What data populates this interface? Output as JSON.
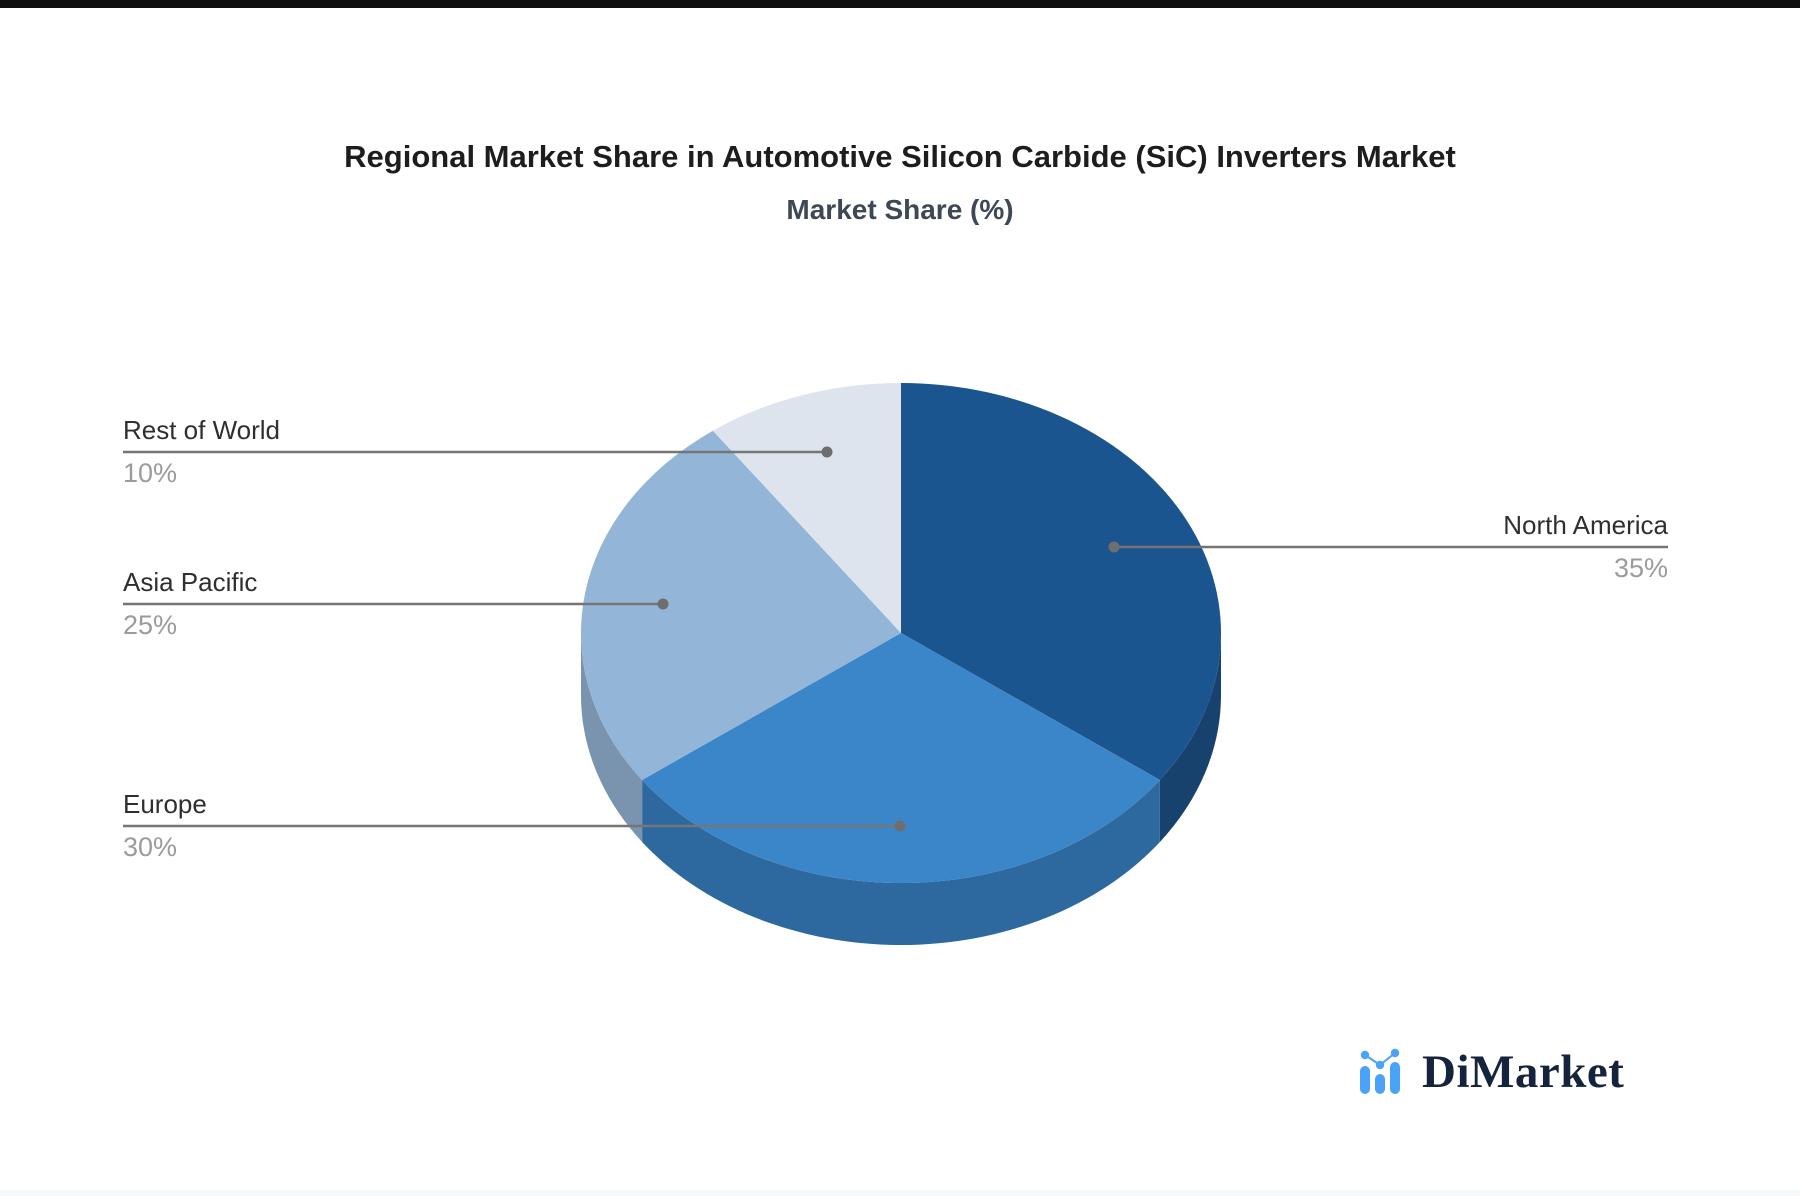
{
  "page": {
    "title": "Regional Market Share in Automotive Silicon Carbide (SiC) Inverters Market",
    "subtitle": "Market Share (%)"
  },
  "chart_data": {
    "type": "pie",
    "style": "3d",
    "title": "Regional Market Share in Automotive Silicon Carbide (SiC) Inverters Market",
    "subtitle": "Market Share (%)",
    "unit": "%",
    "start_angle": "12 o'clock",
    "direction": "clockwise",
    "legend_position": "none",
    "label_style": "callouts with leader lines and dots",
    "leader_line_color": "#757575",
    "slices": [
      {
        "label": "North America",
        "value": 35,
        "pct_label": "35%",
        "color": "#1b5590",
        "side_color": "#17426d",
        "callout_side": "right"
      },
      {
        "label": "Europe",
        "value": 30,
        "pct_label": "30%",
        "color": "#3b86c8",
        "side_color": "#2d699e",
        "callout_side": "left"
      },
      {
        "label": "Asia Pacific",
        "value": 25,
        "pct_label": "25%",
        "color": "#93b5d8",
        "side_color": "#7a93ae",
        "callout_side": "left"
      },
      {
        "label": "Rest of World",
        "value": 10,
        "pct_label": "10%",
        "color": "#dde4ee",
        "side_color": "#b9c3d2",
        "callout_side": "left"
      }
    ]
  },
  "branding": {
    "name": "DiMarket",
    "icon": "bar-line-chart-icon",
    "icon_color": "#4aa3f7",
    "text_color": "#15233c"
  }
}
